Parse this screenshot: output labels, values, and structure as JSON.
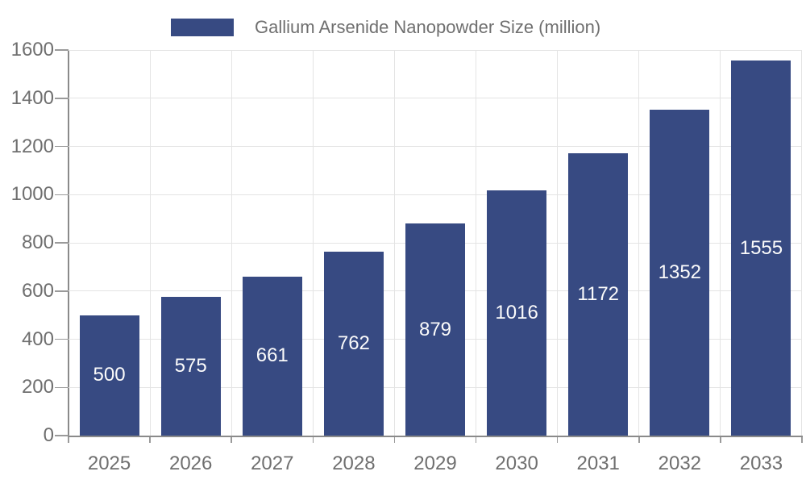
{
  "legend": {
    "label": "Gallium Arsenide Nanopowder Size (million)"
  },
  "chart_data": {
    "type": "bar",
    "title": "Gallium Arsenide Nanopowder Size (million)",
    "categories": [
      "2025",
      "2026",
      "2027",
      "2028",
      "2029",
      "2030",
      "2031",
      "2032",
      "2033"
    ],
    "values": [
      500,
      575,
      661,
      762,
      879,
      1016,
      1172,
      1352,
      1555
    ],
    "bar_labels": [
      "500",
      "575",
      "661",
      "762",
      "879",
      "1016",
      "1172",
      "1352",
      "1555"
    ],
    "xlabel": "",
    "ylabel": "",
    "ylim": [
      0,
      1600
    ],
    "ytick_step": 200,
    "grid": true,
    "legend_position": "top-center",
    "colors": {
      "bar": "#374a82",
      "bar_label": "#fbfbfb",
      "grid_line": "#e4e4e4",
      "axis_line": "#8a8a8a",
      "tick": "#9a9a9a",
      "text": "#6f6f6f"
    }
  }
}
